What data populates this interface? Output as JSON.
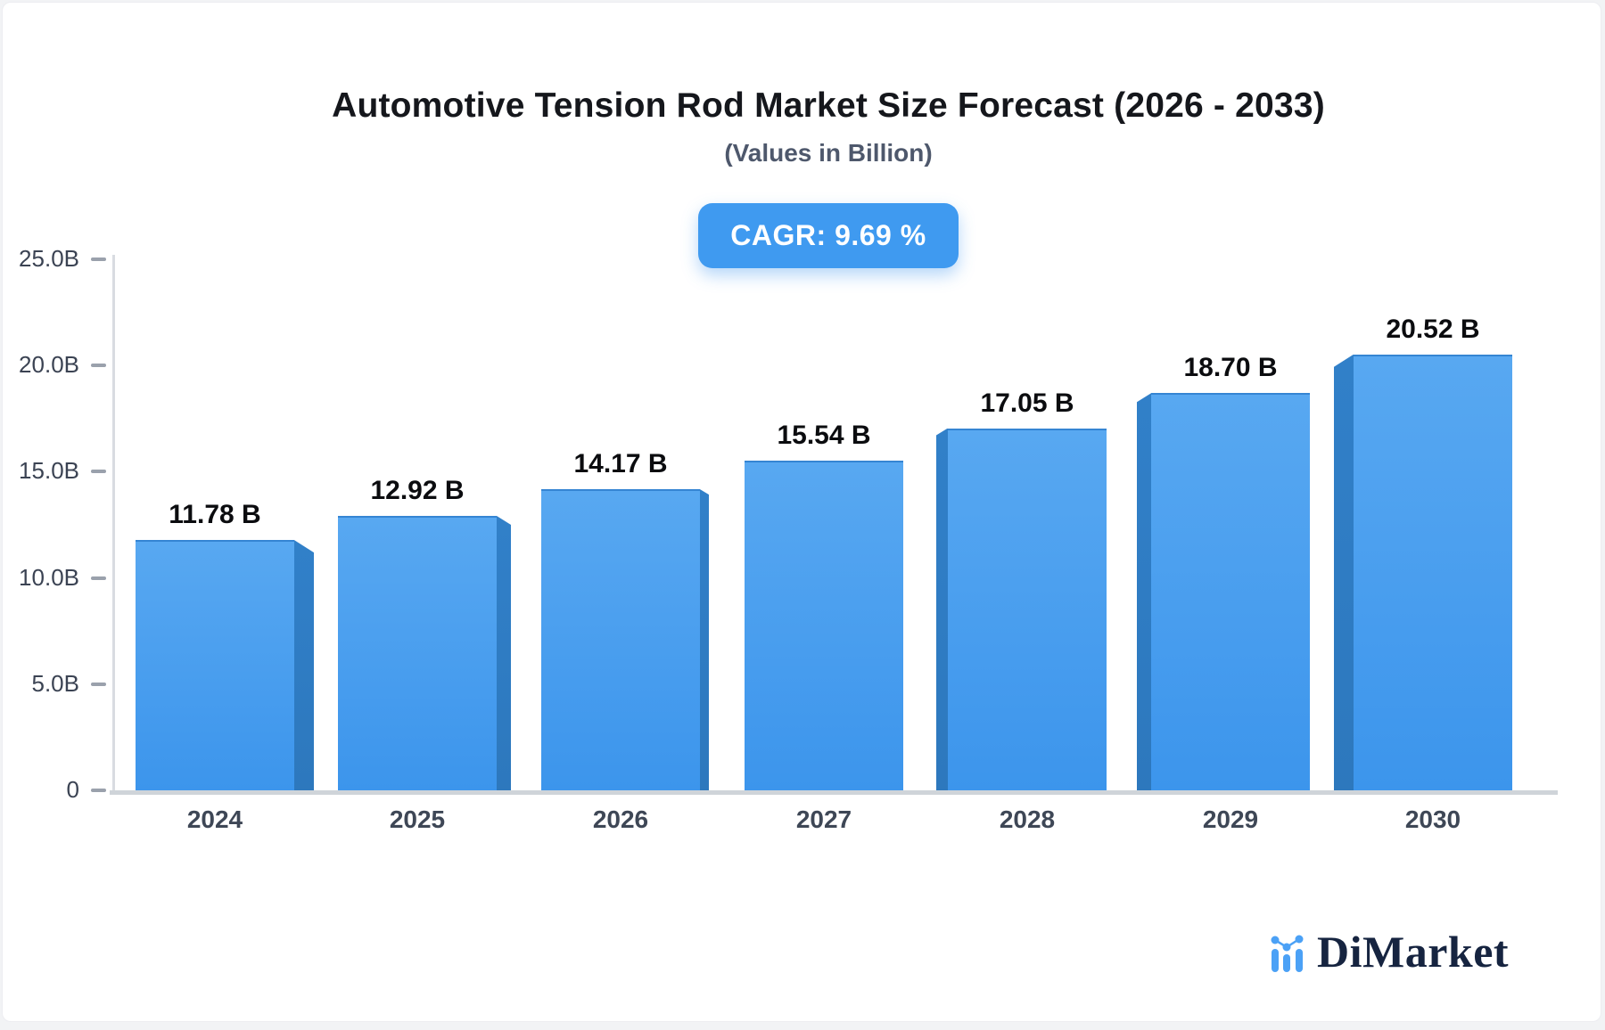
{
  "header": {
    "title": "Automotive Tension Rod Market Size Forecast (2026 - 2033)",
    "subtitle": "(Values in Billion)",
    "cagr_badge": "CAGR: 9.69 %"
  },
  "chart_data": {
    "type": "bar",
    "title": "Automotive Tension Rod Market Size Forecast (2026 - 2033)",
    "subtitle": "(Values in Billion)",
    "cagr_percent": 9.69,
    "categories": [
      "2024",
      "2025",
      "2026",
      "2027",
      "2028",
      "2029",
      "2030"
    ],
    "values": [
      11.78,
      12.92,
      14.17,
      15.54,
      17.05,
      18.7,
      20.52
    ],
    "value_labels": [
      "11.78 B",
      "12.92 B",
      "14.17 B",
      "15.54 B",
      "17.05 B",
      "18.70 B",
      "20.52 B"
    ],
    "xlabel": "",
    "ylabel": "",
    "ylim": [
      0,
      25
    ],
    "y_ticks": [
      {
        "label": "25.0B",
        "value": 25
      },
      {
        "label": "20.0B",
        "value": 20
      },
      {
        "label": "15.0B",
        "value": 15
      },
      {
        "label": "10.0B",
        "value": 10
      },
      {
        "label": "5.0B",
        "value": 5
      },
      {
        "label": "0",
        "value": 0
      }
    ],
    "grid": false,
    "legend": false,
    "colors": {
      "bar_front_top": "#58a8f1",
      "bar_front_bottom": "#3c95ec",
      "bar_side": "#2e7cc3",
      "badge_bg": "#3f9af0",
      "axis_line": "#d9dce1",
      "baseline": "#cfd4d9",
      "tick_mark": "#9aa1ac",
      "axis_label": "#3e4756",
      "value_label": "#0b0c0f",
      "title": "#15171c",
      "subtitle": "#4e586c"
    }
  },
  "branding": {
    "logo_text": "DiMarket",
    "logo_icon": "bar-chart-icon",
    "logo_color": "#162440",
    "logo_icon_color": "#4ba1f6"
  }
}
